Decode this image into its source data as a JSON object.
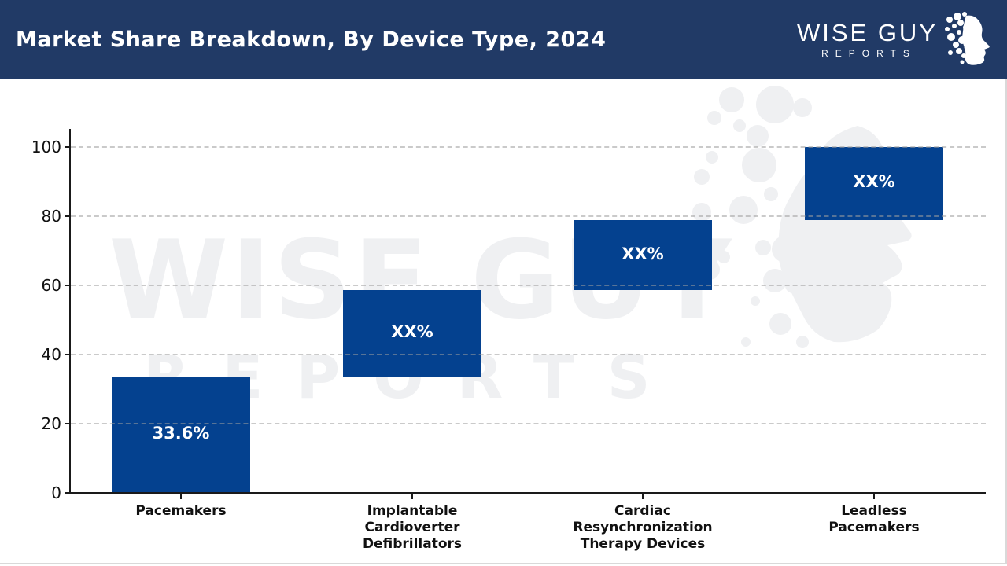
{
  "header": {
    "title": "Market Share Breakdown, By Device Type, 2024",
    "logo": {
      "line1": "WISE GUY",
      "line2": "REPORTS"
    }
  },
  "watermark": {
    "line1": "WISE GUY",
    "line2": "REPORTS"
  },
  "chart_data": {
    "type": "bar",
    "subtype": "waterfall",
    "title": "Market Share Breakdown, By Device Type, 2024",
    "categories": [
      "Pacemakers",
      "Implantable Cardioverter Defibrillators",
      "Cardiac Resynchronization Therapy Devices",
      "Leadless Pacemakers"
    ],
    "category_label_lines": [
      [
        "Pacemakers"
      ],
      [
        "Implantable",
        "Cardioverter",
        "Defibrillators"
      ],
      [
        "Cardiac",
        "Resynchronization",
        "Therapy Devices"
      ],
      [
        "Leadless",
        "Pacemakers"
      ]
    ],
    "segments": [
      {
        "category": "Pacemakers",
        "start": 0,
        "end": 33.6,
        "value": 33.6,
        "label": "33.6%"
      },
      {
        "category": "Implantable Cardioverter Defibrillators",
        "start": 33.6,
        "end": 58.6,
        "value": 25.0,
        "label": "XX%"
      },
      {
        "category": "Cardiac Resynchronization Therapy Devices",
        "start": 58.6,
        "end": 78.9,
        "value": 20.3,
        "label": "XX%"
      },
      {
        "category": "Leadless Pacemakers",
        "start": 78.9,
        "end": 100,
        "value": 21.1,
        "label": "XX%"
      }
    ],
    "y_ticks": [
      0,
      20,
      40,
      60,
      80,
      100
    ],
    "ylim": [
      0,
      100
    ],
    "xlabel": "",
    "ylabel": "",
    "grid": "horizontal-dashed",
    "legend": "none",
    "colors": {
      "bar": "#04418f",
      "bar_label": "#ffffff",
      "axis": "#1a1a1a",
      "header_bg": "#213a66",
      "watermark": "#eff0f2"
    }
  }
}
